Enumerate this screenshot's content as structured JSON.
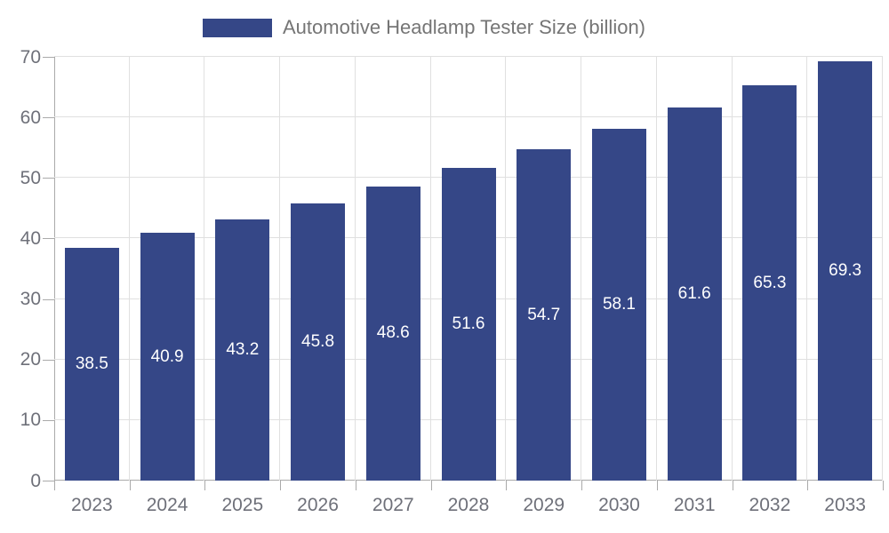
{
  "chart_data": {
    "type": "bar",
    "title": "",
    "legend": "Automotive Headlamp Tester Size (billion)",
    "legend_position": "top-center",
    "categories": [
      "2023",
      "2024",
      "2025",
      "2026",
      "2027",
      "2028",
      "2029",
      "2030",
      "2031",
      "2032",
      "2033"
    ],
    "values": [
      38.5,
      40.9,
      43.2,
      45.8,
      48.6,
      51.6,
      54.7,
      58.1,
      61.6,
      65.3,
      69.3
    ],
    "xlabel": "",
    "ylabel": "",
    "ylim": [
      0,
      70
    ],
    "ytick_step": 10,
    "yticks": [
      0,
      10,
      20,
      30,
      40,
      50,
      60,
      70
    ],
    "grid": "on",
    "value_labels": "inside-center",
    "colors": {
      "bar": "#354787",
      "bar_label_text": "#ffffff",
      "gridline": "#e0e0e0",
      "axis_line": "#aaaaaa",
      "tick_text": "#6e7079",
      "legend_text": "#757575",
      "background": "#ffffff"
    }
  }
}
